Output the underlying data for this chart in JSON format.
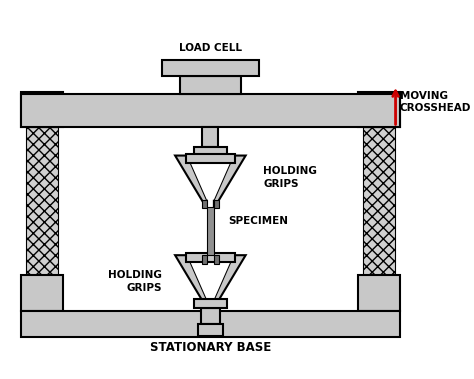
{
  "bg_color": "#ffffff",
  "gray_fill": "#c8c8c8",
  "edge_color": "#000000",
  "title_bottom": "STATIONARY BASE",
  "label_load_cell": "LOAD CELL",
  "label_holding_grips_top": "HOLDING\nGRIPS",
  "label_holding_grips_bot": "HOLDING\nGRIPS",
  "label_specimen": "SPECIMEN",
  "label_crosshead": "MOVING\nCROSSHEAD",
  "font_size_labels": 7.5,
  "font_size_title": 8.5,
  "arrow_color": "#cc0000",
  "lw": 1.5
}
